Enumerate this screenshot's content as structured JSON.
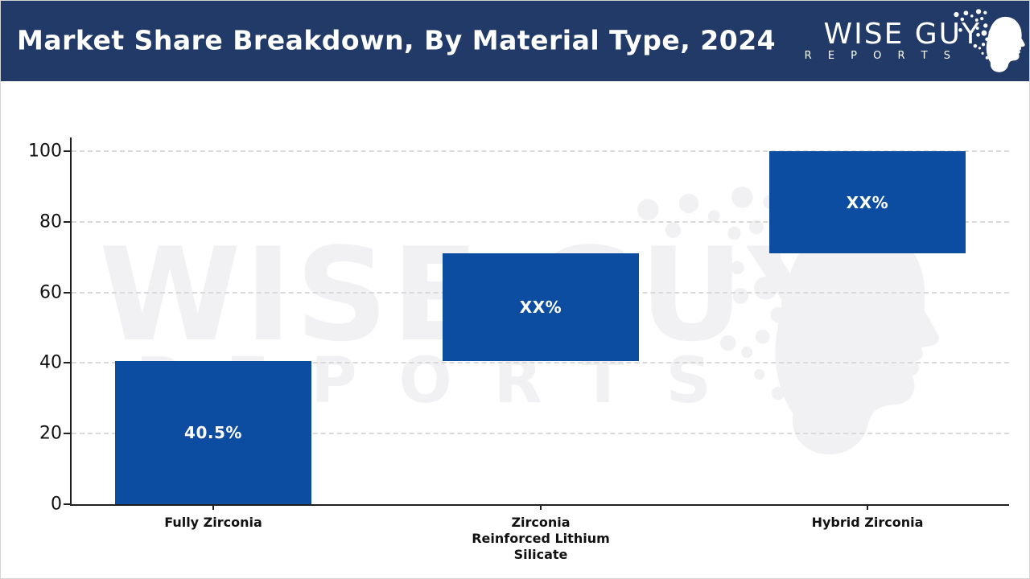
{
  "header": {
    "title": "Market Share Breakdown, By Material Type, 2024",
    "logo": {
      "name": "WISE GUY",
      "subname": "R E P O R T S"
    }
  },
  "watermark": {
    "line1": "WISE GUY",
    "line2": "REPORTS"
  },
  "colors": {
    "header_bg": "#213A67",
    "title_text": "#FFFFFF",
    "bar": "#0C4DA2",
    "bar_label": "#FFFFFF",
    "grid": "#D9D9D9",
    "axis": "#1F1F1F",
    "tick_label": "#111111",
    "watermark": "#F1F1F3",
    "logo_white": "#FFFFFF"
  },
  "chart_data": {
    "type": "bar",
    "subtype": "waterfall",
    "title": "Market Share Breakdown, By Material Type, 2024",
    "categories": [
      [
        "Fully Zirconia"
      ],
      [
        "Zirconia",
        "Reinforced Lithium",
        "Silicate"
      ],
      [
        "Hybrid Zirconia"
      ]
    ],
    "segments": [
      {
        "category": "Fully Zirconia",
        "from": 0,
        "to": 40.5,
        "label": "40.5%"
      },
      {
        "category": "Zirconia Reinforced Lithium Silicate",
        "from": 40.5,
        "to": 71,
        "label": "XX%"
      },
      {
        "category": "Hybrid Zirconia",
        "from": 71,
        "to": 100,
        "label": "XX%"
      }
    ],
    "ylim": [
      0,
      100
    ],
    "yticks": [
      0,
      20,
      40,
      60,
      80,
      100
    ],
    "xlabel": "",
    "ylabel": "",
    "grid": "horizontal-dashed",
    "legend": "none"
  }
}
